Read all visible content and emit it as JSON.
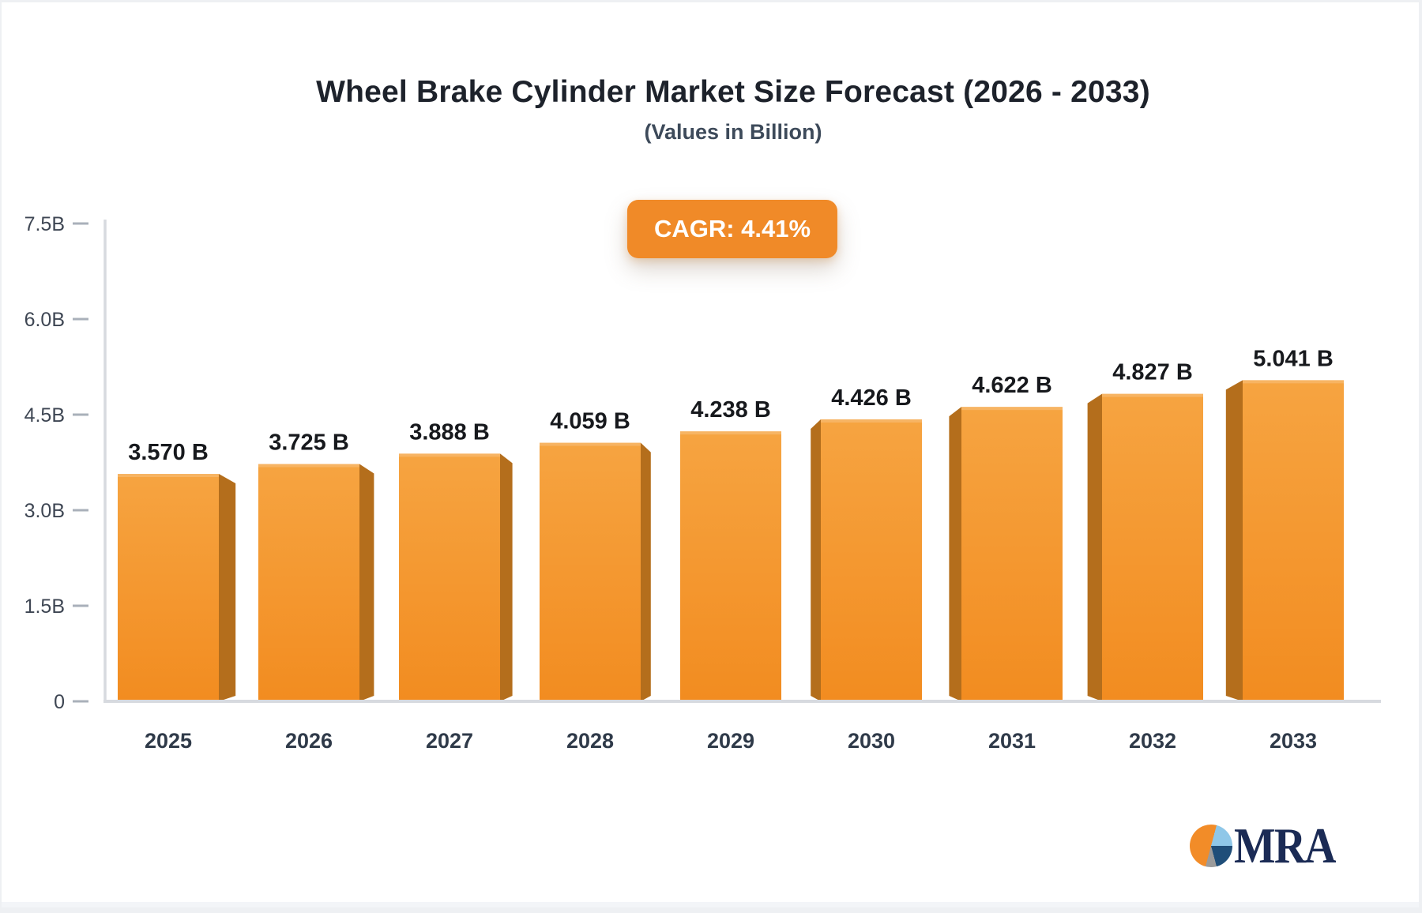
{
  "title": "Wheel Brake Cylinder Market Size Forecast (2026 - 2033)",
  "subtitle": "(Values in Billion)",
  "badge": {
    "label": "CAGR: 4.41%",
    "bg_color": "#F08A28",
    "text_color": "#FFFFFF"
  },
  "logo": {
    "text": "MRA",
    "text_color": "#1B2B55",
    "pie_colors": {
      "orange": "#F28C28",
      "light_blue": "#8FC7E8",
      "navy": "#1F4E79",
      "gray": "#9B9B9B"
    }
  },
  "chart_data": {
    "type": "bar",
    "title": "Wheel Brake Cylinder Market Size Forecast (2026 - 2033)",
    "subtitle": "(Values in Billion)",
    "unit": "Billion",
    "categories": [
      "2025",
      "2026",
      "2027",
      "2028",
      "2029",
      "2030",
      "2031",
      "2032",
      "2033"
    ],
    "values": [
      3.57,
      3.725,
      3.888,
      4.059,
      4.238,
      4.426,
      4.622,
      4.827,
      5.041
    ],
    "value_labels": [
      "3.570 B",
      "3.725 B",
      "3.888 B",
      "4.059 B",
      "4.238 B",
      "4.426 B",
      "4.622 B",
      "4.827 B",
      "5.041 B"
    ],
    "cagr": "4.41%",
    "xlabel": "",
    "ylabel": "",
    "ylim": [
      0,
      7.5
    ],
    "y_ticks": [
      "7.5B",
      "6.0B",
      "4.5B",
      "3.0B",
      "1.5B",
      "0"
    ],
    "y_tick_values": [
      7.5,
      6.0,
      4.5,
      3.0,
      1.5,
      0
    ],
    "grid": false,
    "legend": "none",
    "colors": {
      "bar_top": "#F6A441",
      "bar_bottom": "#F28C20",
      "bar_side": "#B46E1C",
      "axis_line": "#D7DADF",
      "tick_dash": "#A9B0BA",
      "y_label": "#3E4653",
      "x_label": "#2F3A49",
      "value_label": "#17191D"
    }
  }
}
